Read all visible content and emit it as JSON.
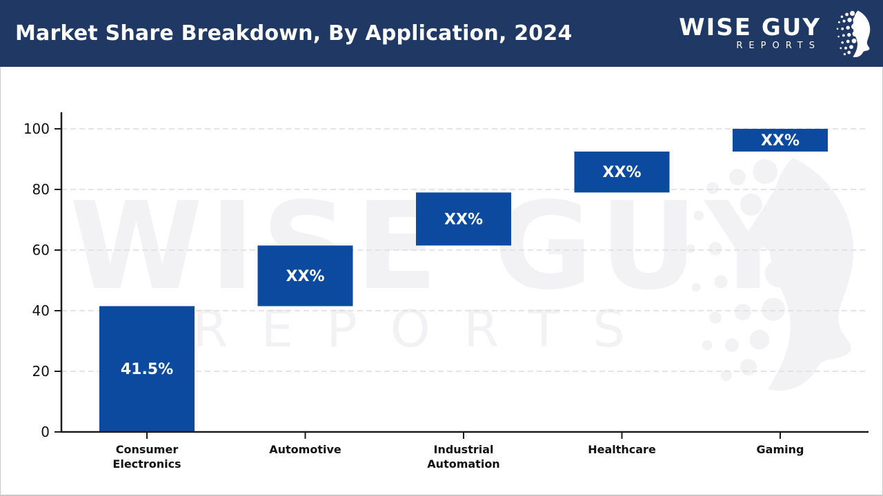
{
  "header": {
    "title": "Market Share Breakdown, By Application, 2024",
    "logo": {
      "line1": "WISE GUY",
      "line2": "REPORTS"
    }
  },
  "watermark": {
    "line1": "WISE GUY",
    "line2": "REPORTS"
  },
  "colors": {
    "header_bg": "#1F3864",
    "bar": "#0B4A9E",
    "axis": "#1A1A1A",
    "gridline": "#DCDCDC",
    "tick_label": "#111111",
    "value_label": "#FFFFFF",
    "watermark": "#F2F2F5"
  },
  "chart_data": {
    "type": "bar",
    "subtype": "waterfall",
    "title": "Market Share Breakdown, By Application, 2024",
    "xlabel": "",
    "ylabel": "",
    "legend": "none",
    "grid": "horizontal-dashed",
    "ylim": [
      0,
      105
    ],
    "yticks": [
      0,
      20,
      40,
      60,
      80,
      100
    ],
    "categories": [
      "Consumer Electronics",
      "Automotive",
      "Industrial Automation",
      "Healthcare",
      "Gaming"
    ],
    "category_lines": [
      [
        "Consumer",
        "Electronics"
      ],
      [
        "Automotive"
      ],
      [
        "Industrial",
        "Automation"
      ],
      [
        "Healthcare"
      ],
      [
        "Gaming"
      ]
    ],
    "bars": [
      {
        "category": "Consumer Electronics",
        "start": 0,
        "end": 41.5,
        "value": 41.5,
        "value_label": "41.5%"
      },
      {
        "category": "Automotive",
        "start": 41.5,
        "end": 61.5,
        "value": 20,
        "value_label": "XX%"
      },
      {
        "category": "Industrial Automation",
        "start": 61.5,
        "end": 79,
        "value": 17.5,
        "value_label": "XX%"
      },
      {
        "category": "Healthcare",
        "start": 79,
        "end": 92.5,
        "value": 13.5,
        "value_label": "XX%"
      },
      {
        "category": "Gaming",
        "start": 92.5,
        "end": 100,
        "value": 7.5,
        "value_label": "XX%"
      }
    ]
  }
}
